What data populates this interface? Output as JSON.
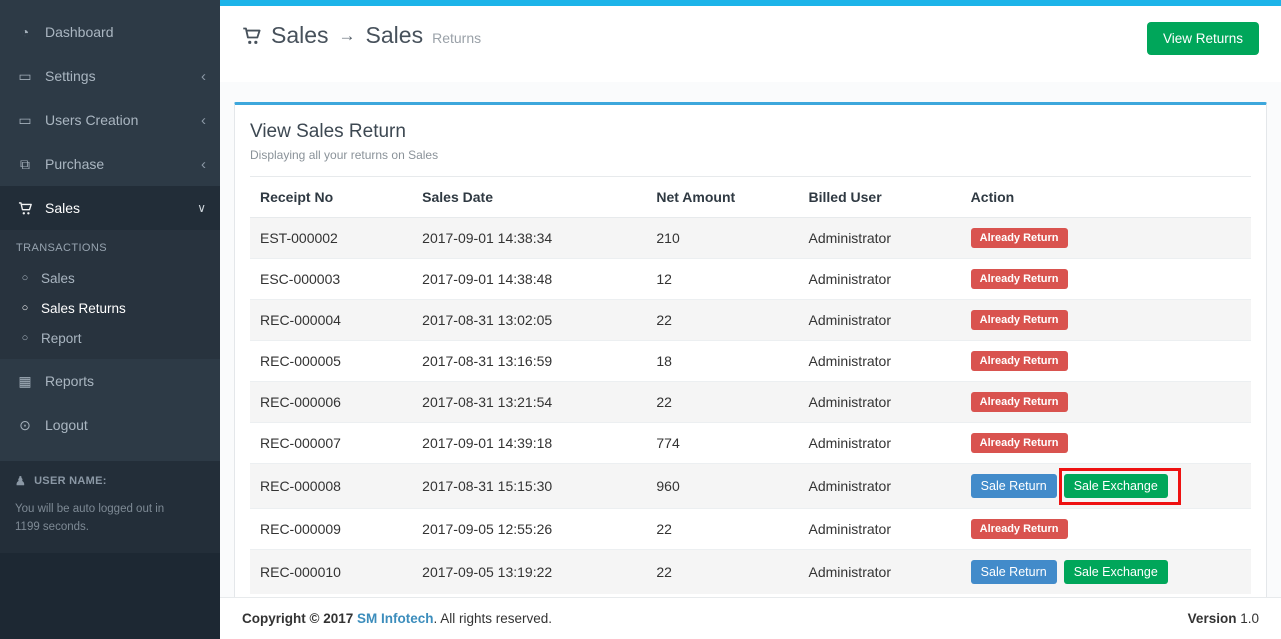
{
  "colors": {
    "top_strip": "#1db4e9",
    "card_top_border": "#3da7dc",
    "green": "#00a65a",
    "red": "#d9534f",
    "blue": "#428bca",
    "link_blue": "#3c8dbc",
    "annotation_red": "#ee1111"
  },
  "sidebar": {
    "main_items": [
      {
        "label": "Dashboard",
        "icon": "dashboard-icon",
        "glyph": "◔"
      },
      {
        "label": "Settings",
        "icon": "monitor-icon",
        "glyph": "▭",
        "chevron": "‹"
      },
      {
        "label": "Users Creation",
        "icon": "monitor-icon",
        "glyph": "▭",
        "chevron": "‹"
      },
      {
        "label": "Purchase",
        "icon": "copy-icon",
        "glyph": "⧉",
        "chevron": "‹"
      },
      {
        "label": "Sales",
        "icon": "cart-icon",
        "glyph": "",
        "chevron": "∨",
        "active": true
      }
    ],
    "section_label": "TRANSACTIONS",
    "submenu_items": [
      {
        "label": "Sales",
        "icon": "circle-icon",
        "glyph": "○"
      },
      {
        "label": "Sales Returns",
        "icon": "circle-icon",
        "glyph": "○",
        "active": true
      },
      {
        "label": "Report",
        "icon": "circle-icon",
        "glyph": "○"
      }
    ],
    "bottom_items": [
      {
        "label": "Reports",
        "icon": "table-icon",
        "glyph": "▦"
      },
      {
        "label": "Logout",
        "icon": "power-icon",
        "glyph": "⊙"
      }
    ],
    "user_icon_glyph": "♟",
    "user_label": "USER NAME:",
    "logout_notice": "You will be auto logged out in 1199 seconds."
  },
  "header": {
    "breadcrumb_section": "Sales",
    "breadcrumb_arrow": "→",
    "breadcrumb_page": "Sales",
    "breadcrumb_sub": "Returns",
    "view_returns_label": "View Returns"
  },
  "panel": {
    "title": "View Sales Return",
    "subtitle": "Displaying all your returns on Sales",
    "columns": [
      "Receipt No",
      "Sales Date",
      "Net Amount",
      "Billed User",
      "Action"
    ],
    "rows": [
      {
        "receipt_no": "EST-000002",
        "sales_date": "2017-09-01 14:38:34",
        "net_amount": "210",
        "billed_user": "Administrator",
        "actions": [
          {
            "label": "Already Return",
            "type": "already-return"
          }
        ]
      },
      {
        "receipt_no": "ESC-000003",
        "sales_date": "2017-09-01 14:38:48",
        "net_amount": "12",
        "billed_user": "Administrator",
        "actions": [
          {
            "label": "Already Return",
            "type": "already-return"
          }
        ]
      },
      {
        "receipt_no": "REC-000004",
        "sales_date": "2017-08-31 13:02:05",
        "net_amount": "22",
        "billed_user": "Administrator",
        "actions": [
          {
            "label": "Already Return",
            "type": "already-return"
          }
        ]
      },
      {
        "receipt_no": "REC-000005",
        "sales_date": "2017-08-31 13:16:59",
        "net_amount": "18",
        "billed_user": "Administrator",
        "actions": [
          {
            "label": "Already Return",
            "type": "already-return"
          }
        ]
      },
      {
        "receipt_no": "REC-000006",
        "sales_date": "2017-08-31 13:21:54",
        "net_amount": "22",
        "billed_user": "Administrator",
        "actions": [
          {
            "label": "Already Return",
            "type": "already-return"
          }
        ]
      },
      {
        "receipt_no": "REC-000007",
        "sales_date": "2017-09-01 14:39:18",
        "net_amount": "774",
        "billed_user": "Administrator",
        "actions": [
          {
            "label": "Already Return",
            "type": "already-return"
          }
        ]
      },
      {
        "receipt_no": "REC-000008",
        "sales_date": "2017-08-31 15:15:30",
        "net_amount": "960",
        "billed_user": "Administrator",
        "actions": [
          {
            "label": "Sale Return",
            "type": "sale-return"
          },
          {
            "label": "Sale Exchange",
            "type": "sale-exchange",
            "annotated": true
          }
        ]
      },
      {
        "receipt_no": "REC-000009",
        "sales_date": "2017-09-05 12:55:26",
        "net_amount": "22",
        "billed_user": "Administrator",
        "actions": [
          {
            "label": "Already Return",
            "type": "already-return"
          }
        ]
      },
      {
        "receipt_no": "REC-000010",
        "sales_date": "2017-09-05 13:19:22",
        "net_amount": "22",
        "billed_user": "Administrator",
        "actions": [
          {
            "label": "Sale Return",
            "type": "sale-return"
          },
          {
            "label": "Sale Exchange",
            "type": "sale-exchange"
          }
        ]
      }
    ]
  },
  "footer": {
    "copyright_prefix": "Copyright © 2017 ",
    "company": "SM Infotech",
    "copyright_suffix": ". All rights reserved.",
    "version_label": "Version",
    "version_value": "1.0"
  }
}
